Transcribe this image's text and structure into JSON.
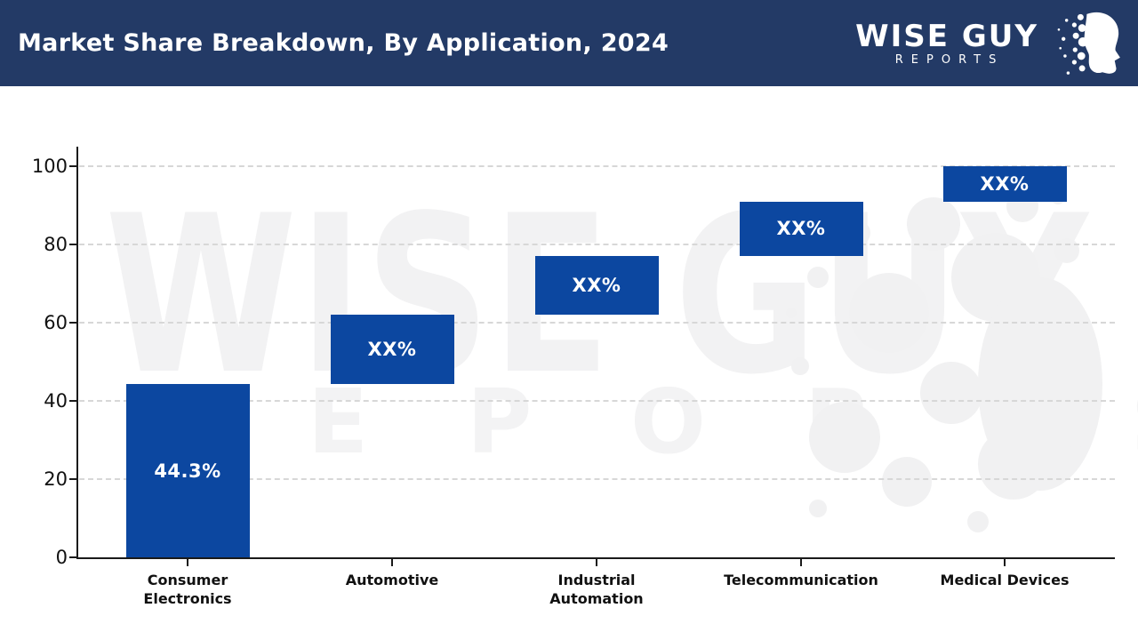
{
  "header": {
    "title": "Market Share Breakdown, By Application, 2024",
    "logo": {
      "line1": "WISE GUY",
      "line2": "REPORTS"
    }
  },
  "watermark": {
    "line1": "WISE GUY",
    "line2": "R E P O R T S"
  },
  "chart_data": {
    "type": "bar",
    "subtype": "waterfall",
    "title": "Market Share Breakdown, By Application, 2024",
    "xlabel": "",
    "ylabel": "",
    "ylim": [
      0,
      105
    ],
    "yticks": [
      0,
      20,
      40,
      60,
      80,
      100
    ],
    "grid": "horizontal-dashed",
    "legend": "none",
    "categories": [
      "Consumer Electronics",
      "Automotive",
      "Industrial Automation",
      "Telecommunication",
      "Medical Devices"
    ],
    "segments": [
      {
        "category": "Consumer Electronics",
        "label_lines": [
          "Consumer",
          "Electronics"
        ],
        "start": 0,
        "end": 44.3,
        "value_label": "44.3%"
      },
      {
        "category": "Automotive",
        "label_lines": [
          "Automotive"
        ],
        "start": 44.3,
        "end": 62.0,
        "value_label": "XX%"
      },
      {
        "category": "Industrial Automation",
        "label_lines": [
          "Industrial",
          "Automation"
        ],
        "start": 62.0,
        "end": 77.0,
        "value_label": "XX%"
      },
      {
        "category": "Telecommunication",
        "label_lines": [
          "Telecommunication"
        ],
        "start": 77.0,
        "end": 91.0,
        "value_label": "XX%"
      },
      {
        "category": "Medical Devices",
        "label_lines": [
          "Medical Devices"
        ],
        "start": 91.0,
        "end": 100.0,
        "value_label": "XX%"
      }
    ],
    "bar_color": "#0c47a0",
    "bar_label_color": "#ffffff"
  },
  "colors": {
    "header_bg": "#233a66",
    "page_bg": "#ffffff",
    "axis": "#1a1a1a",
    "tick_text": "#111111",
    "grid": "#d7d7d7",
    "watermark": "#f2f2f3",
    "frame_border": "#d9d9d9"
  }
}
